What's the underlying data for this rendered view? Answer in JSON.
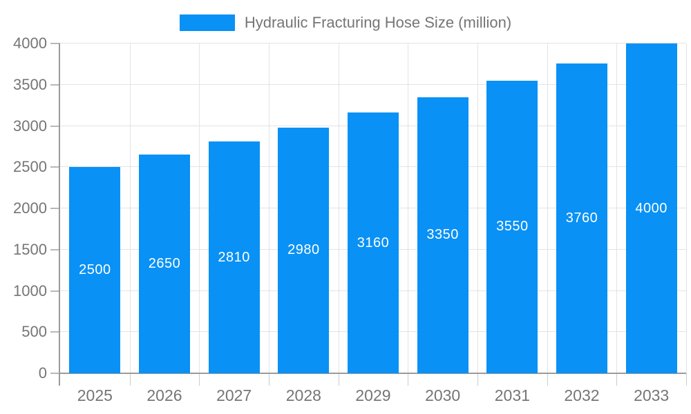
{
  "legend": {
    "label": "Hydraulic Fracturing Hose Size (million)"
  },
  "chart_data": {
    "type": "bar",
    "title": "Hydraulic Fracturing Hose Size (million)",
    "series_name": "Hydraulic Fracturing Hose Size (million)",
    "categories": [
      "2025",
      "2026",
      "2027",
      "2028",
      "2029",
      "2030",
      "2031",
      "2032",
      "2033"
    ],
    "values": [
      2500,
      2650,
      2810,
      2980,
      3160,
      3350,
      3550,
      3760,
      4000
    ],
    "xlabel": "",
    "ylabel": "",
    "ylim": [
      0,
      4000
    ],
    "ytick_step": 500,
    "ytick_labels": [
      "0",
      "500",
      "1000",
      "1500",
      "2000",
      "2500",
      "3000",
      "3500",
      "4000"
    ],
    "grid": true,
    "legend_position": "top-center",
    "value_labels": "inside-center"
  },
  "colors": {
    "bar": "#0991f5",
    "value_label": "#ffffff",
    "axis_text": "#757575",
    "legend_text": "#757575",
    "gridline": "#e3e3e3",
    "axis_line": "#9a9a9a",
    "background": "#ffffff"
  }
}
